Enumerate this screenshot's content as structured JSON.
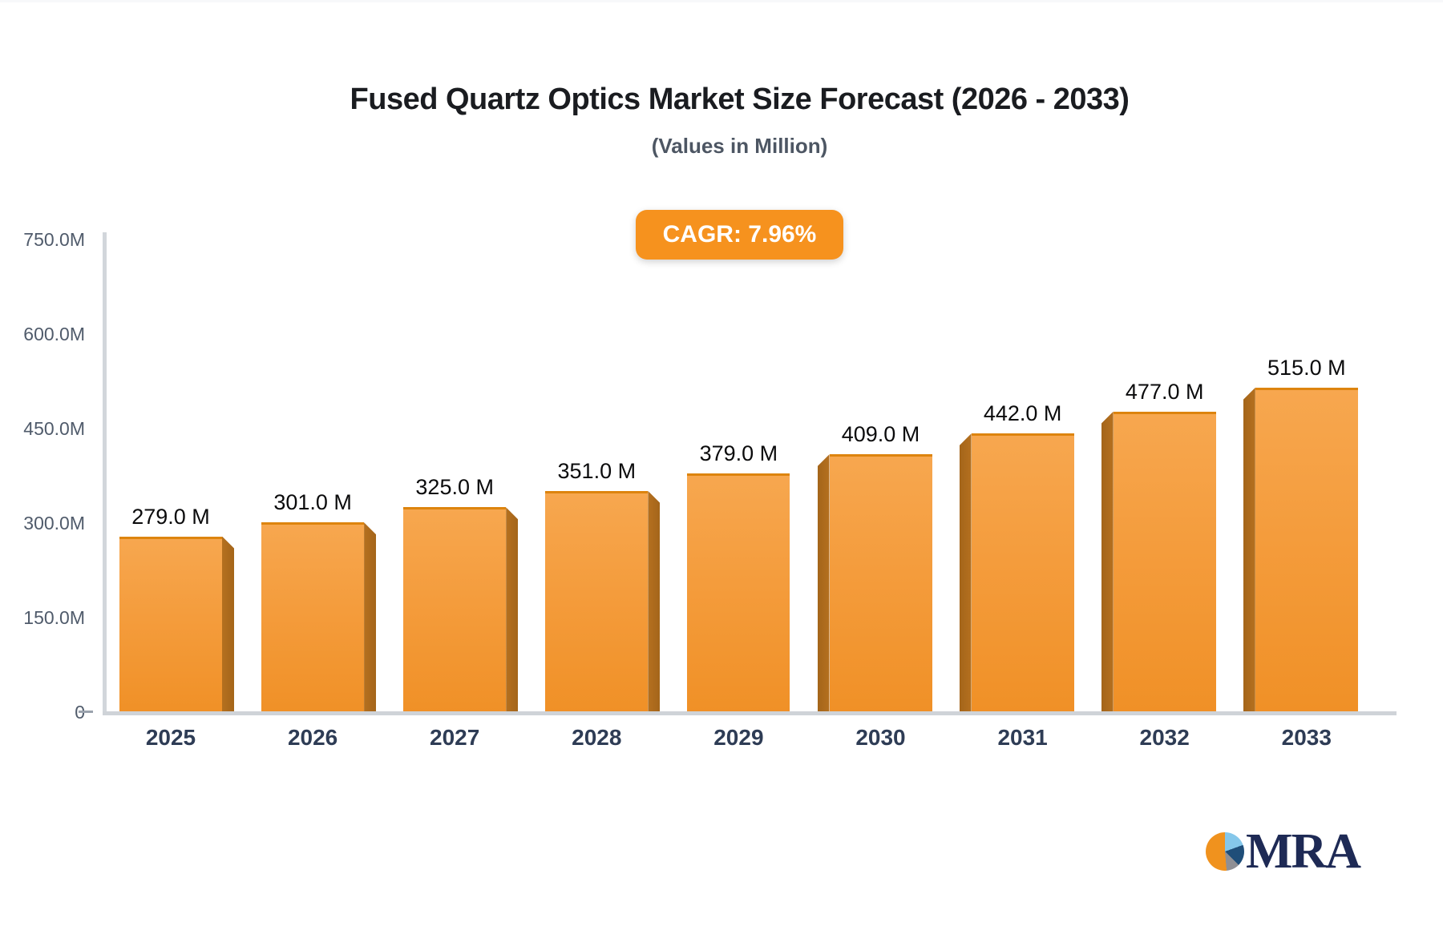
{
  "header": {
    "title": "Fused Quartz Optics Market Size Forecast (2026 - 2033)",
    "subtitle": "(Values in Million)",
    "cagr_badge": "CAGR: 7.96%"
  },
  "chart_data": {
    "type": "bar",
    "title": "Fused Quartz Optics Market Size Forecast (2026 - 2033)",
    "subtitle": "(Values in Million)",
    "categories": [
      "2025",
      "2026",
      "2027",
      "2028",
      "2029",
      "2030",
      "2031",
      "2032",
      "2033"
    ],
    "values": [
      279.0,
      301.0,
      325.0,
      351.0,
      379.0,
      409.0,
      442.0,
      477.0,
      515.0
    ],
    "bar_labels": [
      "279.0 M",
      "301.0 M",
      "325.0 M",
      "351.0 M",
      "379.0 M",
      "409.0 M",
      "442.0 M",
      "477.0 M",
      "515.0 M"
    ],
    "unit": "Million",
    "ylim": [
      0,
      750
    ],
    "y_ticks": [
      {
        "label": "750.0M",
        "value": 750
      },
      {
        "label": "600.0M",
        "value": 600
      },
      {
        "label": "450.0M",
        "value": 450
      },
      {
        "label": "300.0M",
        "value": 300
      },
      {
        "label": "150.0M",
        "value": 150
      },
      {
        "label": "0",
        "value": 0
      }
    ],
    "cagr": "CAGR: 7.96%",
    "grid": false,
    "legend": "none",
    "bar_style": "3d-perspective"
  },
  "colors": {
    "bar_front_top": "#f7a74f",
    "bar_front_bottom": "#f09026",
    "bar_top_edge": "#dd840e",
    "bar_side": "#ad6a1d",
    "badge_bg": "#f6921e",
    "badge_text": "#ffffff",
    "axis_line": "#d2d6db",
    "y_tick_text": "#505b6b",
    "x_tick_text": "#2e3c55",
    "value_label_text": "#0b0b0c",
    "title_text": "#1a1c20",
    "subtitle_text": "#4d5663",
    "logo_text": "#1e2a55"
  },
  "logo": {
    "text": "MRA",
    "icon": "pie-chart-icon",
    "pie_colors": [
      "#f0921e",
      "#85c7ea",
      "#1f4e79",
      "#8f8f94"
    ]
  }
}
